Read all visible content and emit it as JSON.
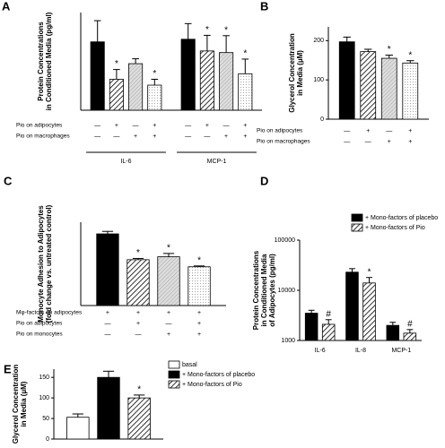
{
  "chart_data": [
    {
      "type": "bar",
      "panel": "A",
      "y_label": [
        "Protein Concentrations",
        "in Conditioned Media (pg/ml)"
      ],
      "categories": [
        "IL-6",
        "MCP-1"
      ],
      "ylim": [
        0,
        300
      ],
      "series": [
        {
          "fill": "black",
          "values": [
            210,
            218
          ],
          "errors": [
            65,
            48
          ],
          "significance": [
            null,
            null
          ]
        },
        {
          "fill": "hatch",
          "values": [
            95,
            182
          ],
          "errors": [
            30,
            48
          ],
          "significance": [
            "*",
            "*"
          ]
        },
        {
          "fill": "gray",
          "values": [
            143,
            177
          ],
          "errors": [
            15,
            52
          ],
          "significance": [
            null,
            "*"
          ]
        },
        {
          "fill": "dots",
          "values": [
            77,
            112
          ],
          "errors": [
            18,
            45
          ],
          "significance": [
            "*",
            "*"
          ]
        }
      ],
      "treatments": [
        {
          "label": "Pio on adipocytes",
          "signs": [
            "—",
            "+",
            "—",
            "+",
            "—",
            "+",
            "—",
            "+"
          ]
        },
        {
          "label": "Pio on macrophages",
          "signs": [
            "—",
            "—",
            "+",
            "+",
            "—",
            "—",
            "+",
            "+"
          ]
        }
      ]
    },
    {
      "type": "bar",
      "panel": "B",
      "y_label": [
        "Glycerol Concentration",
        "in Media (µM)"
      ],
      "categories": [
        null
      ],
      "ylim": [
        0,
        235
      ],
      "yticks": [
        0,
        100,
        200
      ],
      "series": [
        {
          "fill": "black",
          "values": [
            197
          ],
          "errors": [
            12
          ],
          "significance": [
            null
          ]
        },
        {
          "fill": "hatch",
          "values": [
            172
          ],
          "errors": [
            6
          ],
          "significance": [
            null
          ]
        },
        {
          "fill": "gray",
          "values": [
            155
          ],
          "errors": [
            8
          ],
          "significance": [
            "*"
          ]
        },
        {
          "fill": "dots",
          "values": [
            143
          ],
          "errors": [
            6
          ],
          "significance": [
            "*"
          ]
        }
      ],
      "treatments": [
        {
          "label": "Pio on adipocytes",
          "signs": [
            "—",
            "+",
            "—",
            "+"
          ]
        },
        {
          "label": "Pio on macrophages",
          "signs": [
            "—",
            "—",
            "+",
            "+"
          ]
        }
      ]
    },
    {
      "type": "bar",
      "panel": "C",
      "y_label": [
        "Monocyte Adhesion to Adipocytes",
        "(fold change vs. untreated control)"
      ],
      "categories": [
        null
      ],
      "ylim": [
        0,
        2
      ],
      "series": [
        {
          "fill": "black",
          "values": [
            1.72
          ],
          "errors": [
            0.06
          ],
          "significance": [
            null
          ]
        },
        {
          "fill": "hatch",
          "values": [
            1.1
          ],
          "errors": [
            0.03
          ],
          "significance": [
            "*"
          ]
        },
        {
          "fill": "gray",
          "values": [
            1.17
          ],
          "errors": [
            0.08
          ],
          "significance": [
            "*"
          ]
        },
        {
          "fill": "dots",
          "values": [
            0.93
          ],
          "errors": [
            0.02
          ],
          "significance": [
            "*"
          ]
        }
      ],
      "treatments": [
        {
          "label": "Mφ-factors on adipocytes",
          "signs": [
            "+",
            "+",
            "+",
            "+"
          ]
        },
        {
          "label": "Pio on adipocytes",
          "signs": [
            "—",
            "+",
            "—",
            "+"
          ]
        },
        {
          "label": "Pio on monocytes",
          "signs": [
            "—",
            "—",
            "+",
            "+"
          ]
        }
      ]
    },
    {
      "type": "bar",
      "panel": "D",
      "log_scale": true,
      "legend": "top-right",
      "y_label": [
        "Protein Concentrations",
        "in Conditioned Media",
        "of Adipocytes (pg/ml)"
      ],
      "categories": [
        "IL-6",
        "IL-8",
        "MCP-1"
      ],
      "ylim": [
        1000,
        100000
      ],
      "yticks": [
        1000,
        10000,
        100000
      ],
      "series": [
        {
          "name": "+ Mono-factors of placebo",
          "fill": "black",
          "values": [
            3500,
            23000,
            2000
          ],
          "errors": [
            500,
            4000,
            300
          ],
          "significance": [
            null,
            null,
            null
          ]
        },
        {
          "name": "+ Mono-factors of Pio",
          "fill": "hatch",
          "values": [
            2100,
            14000,
            1400
          ],
          "errors": [
            500,
            4000,
            250
          ],
          "significance": [
            "#",
            "*",
            "#"
          ]
        }
      ]
    },
    {
      "type": "bar",
      "panel": "E",
      "legend": "top-right",
      "y_label": [
        "Glycerol Concentration",
        "in Media (µM)"
      ],
      "categories": [
        null
      ],
      "ylim": [
        0,
        170
      ],
      "yticks": [
        0,
        50,
        100,
        150
      ],
      "series": [
        {
          "name": "basal",
          "fill": "white",
          "values": [
            53
          ],
          "errors": [
            8
          ],
          "significance": [
            null
          ]
        },
        {
          "name": "+ Mono-factors of placebo",
          "fill": "black",
          "values": [
            150
          ],
          "errors": [
            15
          ],
          "significance": [
            null
          ]
        },
        {
          "name": "+ Mono-factors of Pio",
          "fill": "hatch",
          "values": [
            100
          ],
          "errors": [
            7
          ],
          "significance": [
            "*"
          ]
        }
      ]
    }
  ]
}
